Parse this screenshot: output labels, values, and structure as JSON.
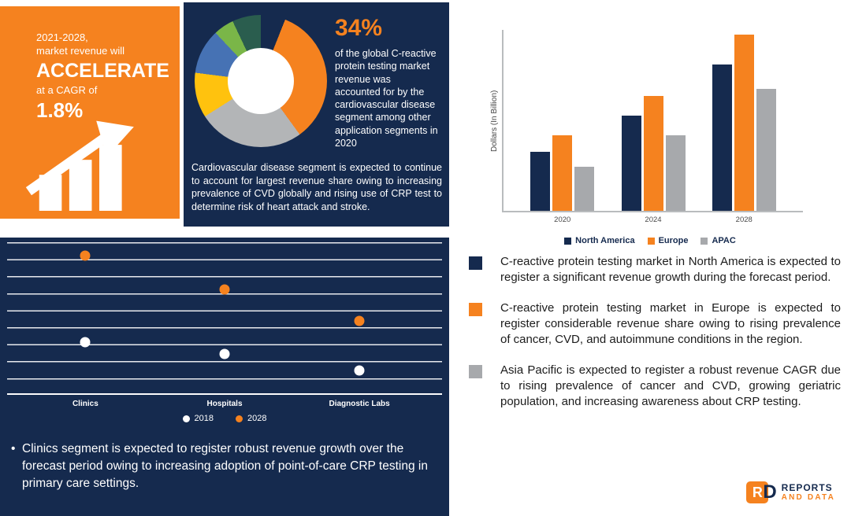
{
  "colors": {
    "orange": "#f5821f",
    "navy": "#152a4e",
    "gray": "#a7a9ac",
    "white": "#ffffff"
  },
  "accelerate_panel": {
    "line1": "2021-2028,",
    "line2": "market revenue will",
    "line3": "ACCELERATE",
    "line4": "at a CAGR of",
    "line5": "1.8%"
  },
  "donut_panel": {
    "stat": "34%",
    "stat_text": "of the global C-reactive protein testing market revenue was accounted for by the cardiovascular disease segment among other application segments in 2020",
    "body": "Cardiovascular disease segment is expected to continue to account for largest revenue share owing to increasing prevalence of CVD globally and rising use of CRP test to determine risk of heart attack and stroke."
  },
  "dot_panel": {
    "bullet": "Clinics segment is expected to register robust revenue growth over the forecast period owing to increasing adoption of point-of-care CRP testing in primary care settings."
  },
  "right_bullets": [
    {
      "color": "#152a4e",
      "text": "C-reactive protein testing market in North America is expected to register a significant revenue growth during the forecast period."
    },
    {
      "color": "#f5821f",
      "text": "C-reactive protein testing market in Europe is expected to register considerable revenue share owing to rising prevalence of cancer, CVD, and autoimmune conditions in the region."
    },
    {
      "color": "#a7a9ac",
      "text": "Asia Pacific is expected to register a robust revenue CAGR due to rising prevalence of cancer and CVD, growing geriatric population, and increasing awareness about CRP testing."
    }
  ],
  "logo": {
    "mark_r": "R",
    "mark_d": "D",
    "line1": "REPORTS",
    "line2": "AND DATA"
  },
  "chart_data": [
    {
      "type": "pie",
      "subtype": "donut",
      "highlight": {
        "label": "Cardiovascular disease segment, 2020",
        "value_pct": 34
      },
      "segments": [
        {
          "label": "",
          "color": "#152a4e",
          "value": 6
        },
        {
          "label": "Cardiovascular disease",
          "color": "#f5821f",
          "value": 34
        },
        {
          "label": "",
          "color": "#b3b5b7",
          "value": 26
        },
        {
          "label": "",
          "color": "#ffc20e",
          "value": 11
        },
        {
          "label": "",
          "color": "#4672b4",
          "value": 11
        },
        {
          "label": "",
          "color": "#7ab648",
          "value": 5
        },
        {
          "label": "",
          "color": "#2a5d4e",
          "value": 7
        }
      ],
      "legend_position": "none"
    },
    {
      "type": "bar",
      "categories": [
        "2020",
        "2024",
        "2028"
      ],
      "series": [
        {
          "name": "North America",
          "color": "#152a4e",
          "values": [
            3.6,
            5.8,
            8.9
          ]
        },
        {
          "name": "Europe",
          "color": "#f5821f",
          "values": [
            4.6,
            7.0,
            10.7
          ]
        },
        {
          "name": "APAC",
          "color": "#a7a9ac",
          "values": [
            2.7,
            4.6,
            7.4
          ]
        }
      ],
      "xlabel": "",
      "ylabel": "Dollars (In Billion)",
      "ylim": [
        0,
        11
      ],
      "grid": false,
      "legend_position": "bottom"
    },
    {
      "type": "scatter",
      "subtype": "dot-plot",
      "categories": [
        "Clinics",
        "Hospitals",
        "Diagnostic Labs"
      ],
      "series": [
        {
          "name": "2018",
          "color": "#ffffff",
          "top_pct": [
            66,
            74,
            85
          ]
        },
        {
          "name": "2028",
          "color": "#f5821f",
          "top_pct": [
            9,
            31,
            52
          ]
        }
      ],
      "x_pct": [
        18,
        50,
        81
      ],
      "gridlines": 9,
      "grid": true,
      "legend_position": "bottom"
    }
  ]
}
